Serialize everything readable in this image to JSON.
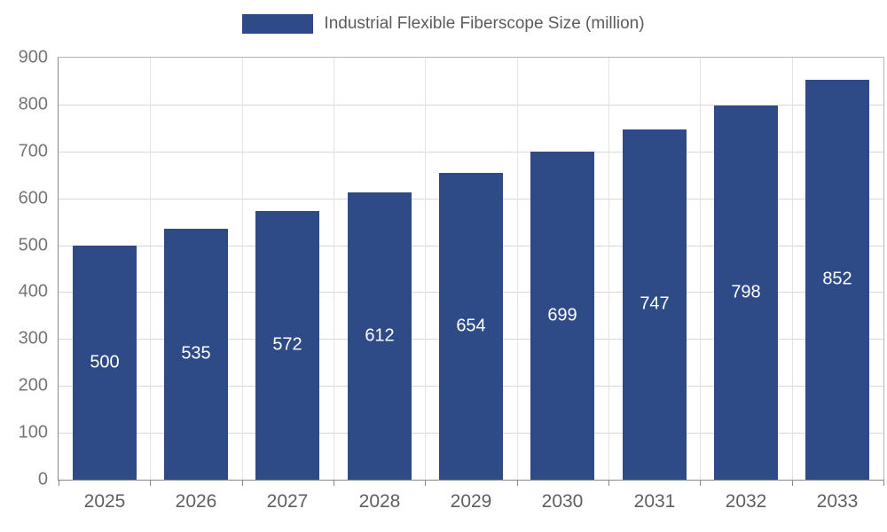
{
  "chart_data": {
    "type": "bar",
    "title": "Industrial Flexible Fiberscope Size (million)",
    "series_name": "Industrial Flexible Fiberscope Size (million)",
    "categories": [
      "2025",
      "2026",
      "2027",
      "2028",
      "2029",
      "2030",
      "2031",
      "2032",
      "2033"
    ],
    "values": [
      500,
      535,
      572,
      612,
      654,
      699,
      747,
      798,
      852
    ],
    "xlabel": "",
    "ylabel": "",
    "ylim": [
      0,
      900
    ],
    "yticks": [
      0,
      100,
      200,
      300,
      400,
      500,
      600,
      700,
      800,
      900
    ],
    "grid": true,
    "legend_position": "top",
    "colors": {
      "bar": "#2f4b87",
      "bar_value_label": "#ffffff",
      "axis_line": "#8a8a8a",
      "gridline": "#d8d8d8",
      "tick_label": "#757575",
      "legend_text": "#5c5c5c",
      "background": "#ffffff"
    }
  }
}
